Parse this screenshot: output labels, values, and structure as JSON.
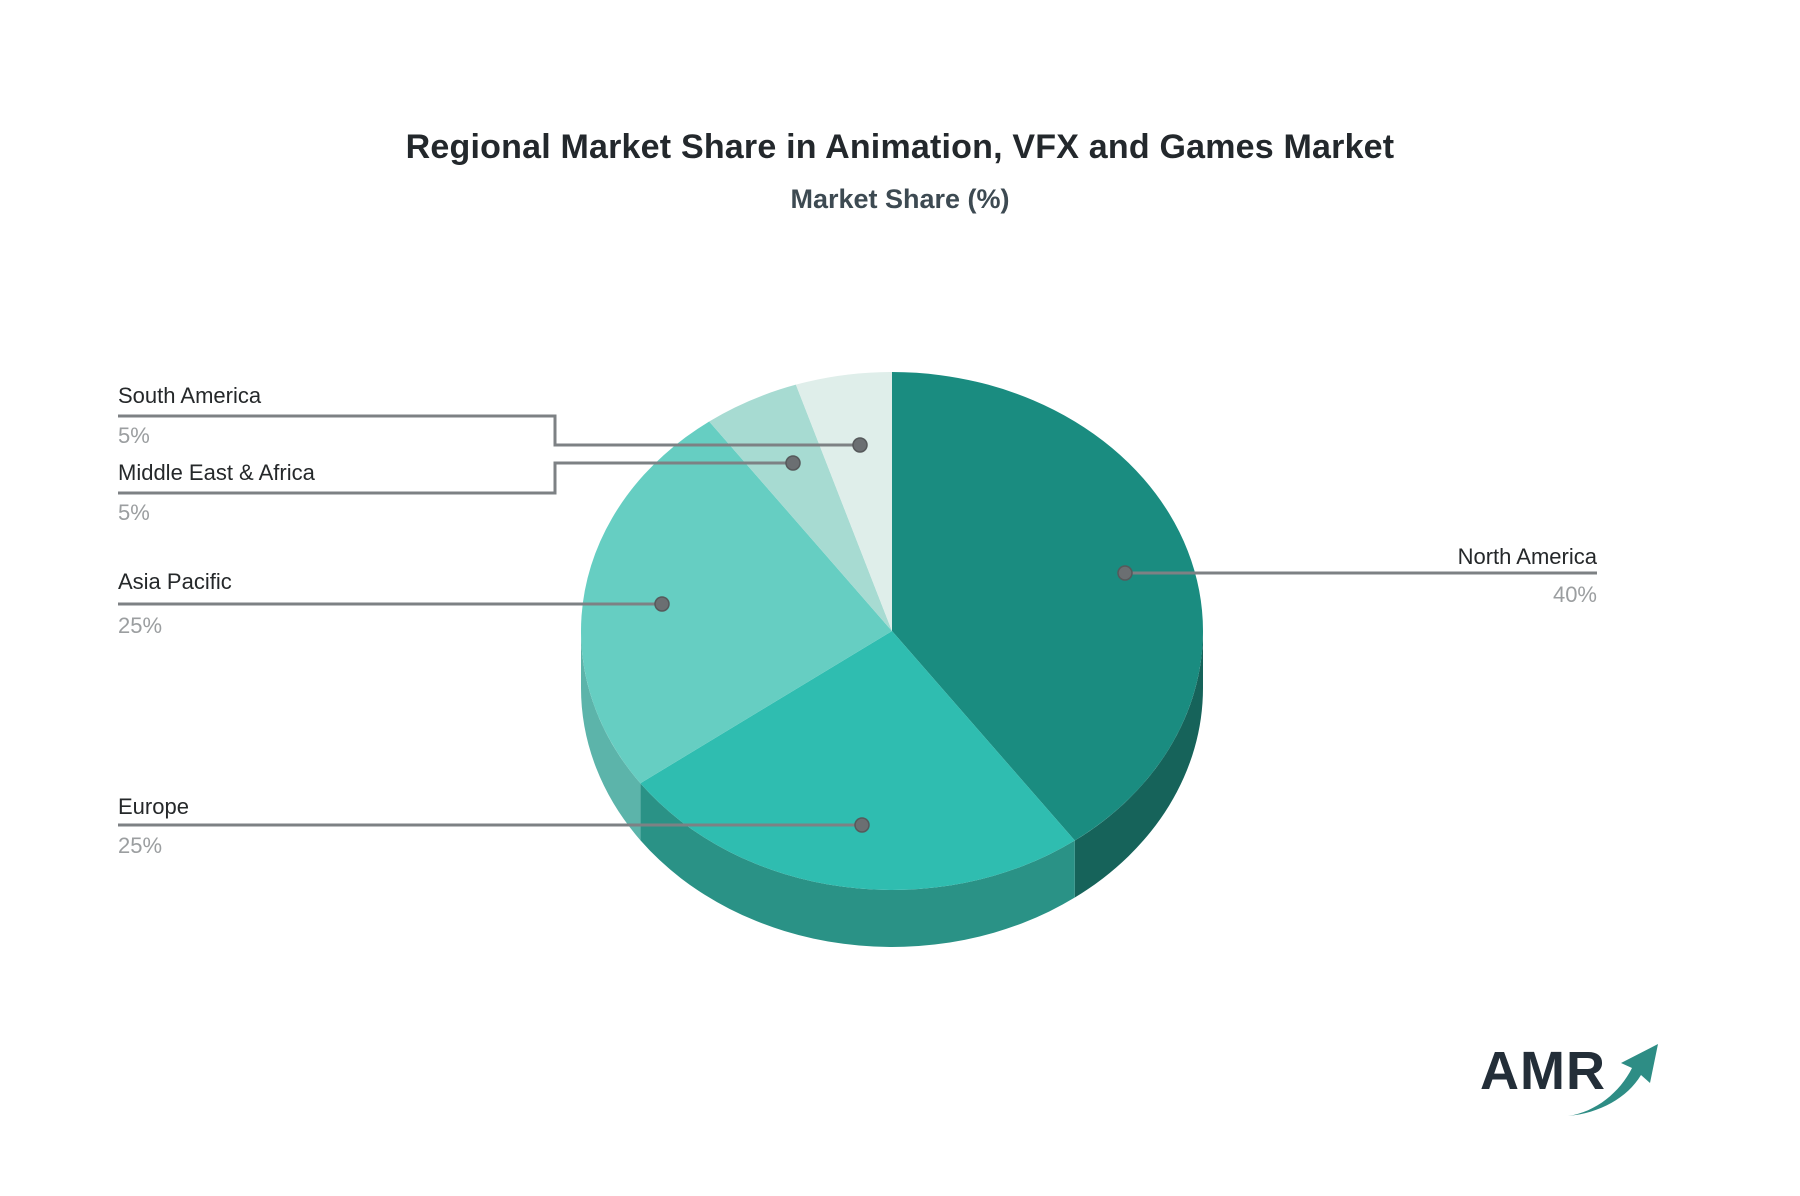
{
  "title": "Regional Market Share in Animation, VFX and Games Market",
  "subtitle": "Market Share (%)",
  "logo": {
    "text": "AMR"
  },
  "colors": {
    "background": "#ffffff",
    "title": "#23282c",
    "subtitle": "#3d4a52",
    "label": "#25282a",
    "value": "#9b9ea0",
    "callout_line": "#7d8184",
    "callout_dot": "#6b6f72",
    "callout_dot_stroke": "#56595b",
    "logo_text": "#232e38",
    "logo_arrow": "#2e8d85"
  },
  "chart_data": {
    "type": "pie",
    "style": "3d",
    "title": "Regional Market Share in Animation, VFX and Games Market",
    "subtitle": "Market Share (%)",
    "unit": "%",
    "start_angle_deg": 0,
    "direction": "clockwise",
    "legend_position": "callout-labels",
    "slices": [
      {
        "label": "North America",
        "value": 40,
        "display": "40%",
        "color": "#1a8c80",
        "side_color": "#16635a"
      },
      {
        "label": "Europe",
        "value": 25,
        "display": "25%",
        "color": "#2fbdb0",
        "side_color": "#2a9286"
      },
      {
        "label": "Asia Pacific",
        "value": 25,
        "display": "25%",
        "color": "#66cec2",
        "side_color": "#5cb4aa"
      },
      {
        "label": "Middle East & Africa",
        "value": 5,
        "display": "5%",
        "color": "#a7dbd2",
        "side_color": "#8fc5bb"
      },
      {
        "label": "South America",
        "value": 5,
        "display": "5%",
        "color": "#dfeeea",
        "side_color": "#c4d9d4"
      }
    ]
  }
}
